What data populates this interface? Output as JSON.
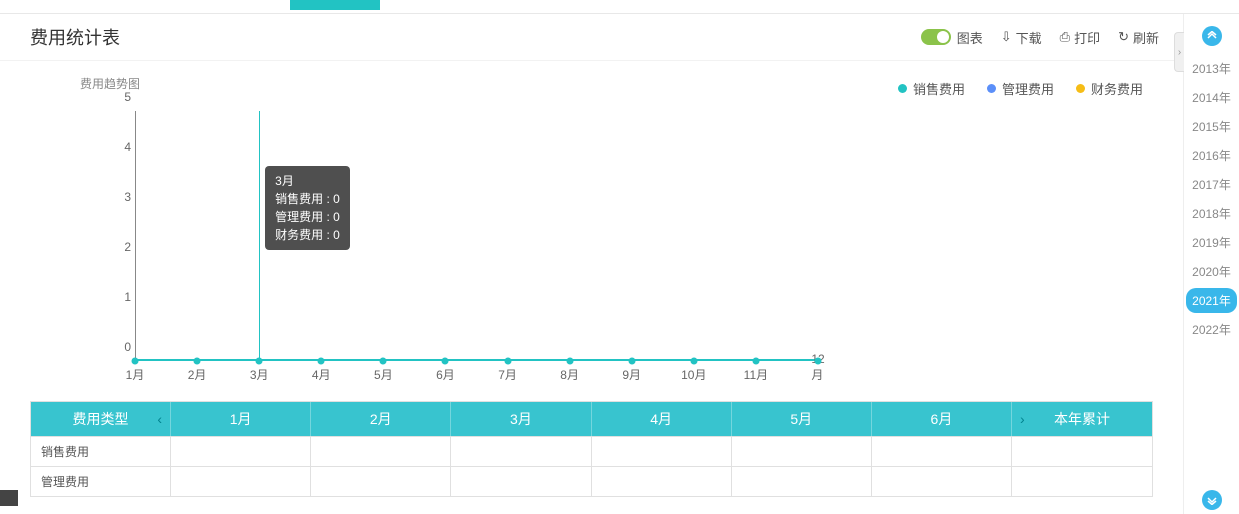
{
  "page": {
    "title": "费用统计表"
  },
  "toolbar": {
    "chart_toggle_label": "图表",
    "download_label": "下载",
    "print_label": "打印",
    "refresh_label": "刷新"
  },
  "chart": {
    "subtitle": "费用趋势图",
    "type": "line",
    "x_categories": [
      "1月",
      "2月",
      "3月",
      "4月",
      "5月",
      "6月",
      "7月",
      "8月",
      "9月",
      "10月",
      "11月",
      "12月"
    ],
    "y_ticks": [
      0,
      1,
      2,
      3,
      4,
      5
    ],
    "ylim": [
      0,
      5
    ],
    "series": [
      {
        "name": "销售费用",
        "color": "#22c3c3",
        "values": [
          0,
          0,
          0,
          0,
          0,
          0,
          0,
          0,
          0,
          0,
          0,
          0
        ]
      },
      {
        "name": "管理费用",
        "color": "#5b8ff9",
        "values": [
          0,
          0,
          0,
          0,
          0,
          0,
          0,
          0,
          0,
          0,
          0,
          0
        ]
      },
      {
        "name": "财务费用",
        "color": "#f6bd16",
        "values": [
          0,
          0,
          0,
          0,
          0,
          0,
          0,
          0,
          0,
          0,
          0,
          0
        ]
      }
    ],
    "hover_index": 2,
    "axis_color": "#888",
    "grid_color": "#e0e0e0",
    "label_color": "#666",
    "label_fontsize": 12
  },
  "tooltip": {
    "title": "3月",
    "rows": [
      {
        "label": "销售费用",
        "value": "0"
      },
      {
        "label": "管理费用",
        "value": "0"
      },
      {
        "label": "财务费用",
        "value": "0"
      }
    ]
  },
  "table": {
    "type_header": "费用类型",
    "month_headers": [
      "1月",
      "2月",
      "3月",
      "4月",
      "5月",
      "6月"
    ],
    "total_header": "本年累计",
    "rows": [
      {
        "type": "销售费用",
        "cells": [
          "",
          "",
          "",
          "",
          "",
          ""
        ],
        "total": ""
      },
      {
        "type": "管理费用",
        "cells": [
          "",
          "",
          "",
          "",
          "",
          ""
        ],
        "total": ""
      }
    ]
  },
  "year_nav": {
    "years": [
      "2013年",
      "2014年",
      "2015年",
      "2016年",
      "2017年",
      "2018年",
      "2019年",
      "2020年",
      "2021年",
      "2022年"
    ],
    "active": "2021年"
  },
  "colors": {
    "primary": "#22c3c3",
    "table_header": "#38c4cf",
    "year_active": "#39b7ea",
    "toggle_on": "#8bc34a"
  }
}
